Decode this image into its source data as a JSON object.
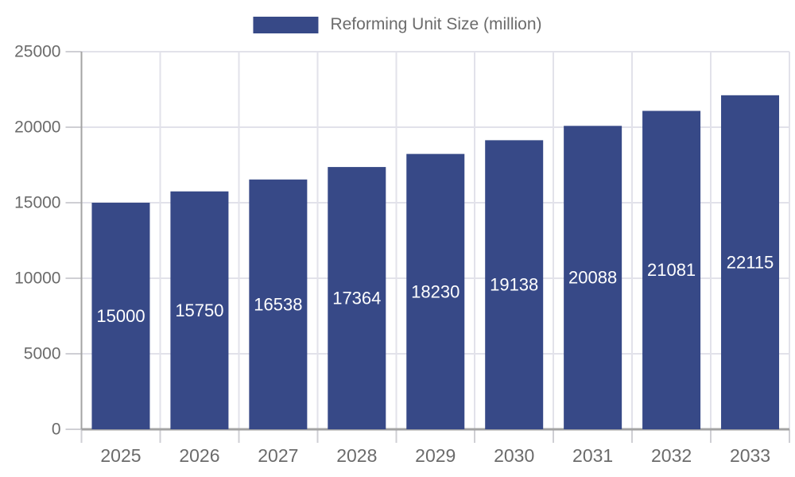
{
  "legend": {
    "label": "Reforming Unit Size (million)"
  },
  "chart_data": {
    "type": "bar",
    "title": "",
    "categories": [
      "2025",
      "2026",
      "2027",
      "2028",
      "2029",
      "2030",
      "2031",
      "2032",
      "2033"
    ],
    "series": [
      {
        "name": "Reforming Unit Size (million)",
        "values": [
          15000,
          15750,
          16538,
          17364,
          18230,
          19138,
          20088,
          21081,
          22115
        ]
      }
    ],
    "value_labels": [
      15000,
      15750,
      16538,
      17364,
      18230,
      19138,
      20088,
      21081,
      22115
    ],
    "value_label_position": "inside-middle",
    "xlabel": "",
    "ylabel": "",
    "ylim": [
      0,
      25000
    ],
    "yticks": [
      0,
      5000,
      10000,
      15000,
      20000,
      25000
    ],
    "grid": "on",
    "legend_position": "top",
    "colors": {
      "bar": "#374987",
      "grid": "#e2e2ea",
      "tick": "#cfcfd4",
      "axis": "#a3a3a3",
      "axis_text": "#6b6b6b",
      "value_label_text": "#ffffff",
      "background": "#ffffff"
    }
  }
}
